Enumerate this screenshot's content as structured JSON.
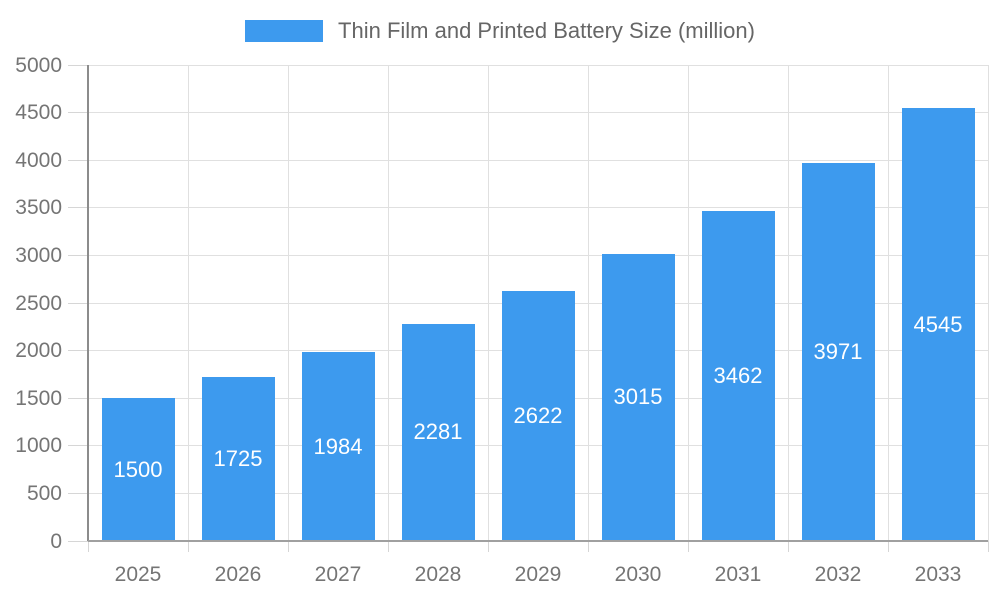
{
  "legend": {
    "label": "Thin Film and Printed Battery Size (million)"
  },
  "colors": {
    "bar": "#3D9AEE",
    "grid": "#E0E0E0",
    "y_axis_line": "#8C8C8C",
    "x_axis_line": "#A0A0A0",
    "tick": "#D6D6D6",
    "axis_label_text": "#757575",
    "legend_text": "#666666",
    "value_label_text": "#FFFFFF"
  },
  "chart_data": {
    "type": "bar",
    "title": "Thin Film and Printed Battery Size (million)",
    "categories": [
      "2025",
      "2026",
      "2027",
      "2028",
      "2029",
      "2030",
      "2031",
      "2032",
      "2033"
    ],
    "values": [
      1500,
      1725,
      1984,
      2281,
      2622,
      3015,
      3462,
      3971,
      4545
    ],
    "value_labels": [
      "1500",
      "1725",
      "1984",
      "2281",
      "2622",
      "3015",
      "3462",
      "3971",
      "4545"
    ],
    "xlabel": "",
    "ylabel": "",
    "ylim": [
      0,
      5000
    ],
    "ytick_step": 500,
    "yticks": [
      0,
      500,
      1000,
      1500,
      2000,
      2500,
      3000,
      3500,
      4000,
      4500,
      5000
    ],
    "grid": true,
    "legend_position": "top",
    "value_label_position": "inside-center"
  }
}
